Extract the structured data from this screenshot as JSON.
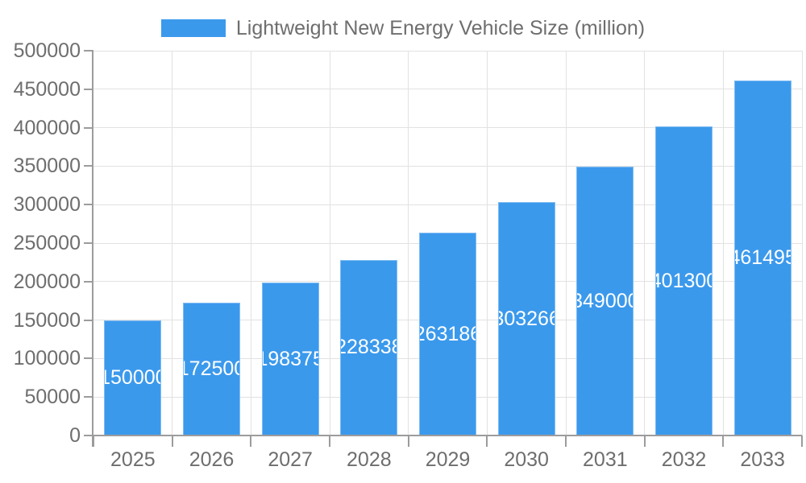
{
  "legend": {
    "label": "Lightweight New Energy Vehicle Size (million)"
  },
  "chart_data": {
    "type": "bar",
    "title": "Lightweight New Energy Vehicle Size (million)",
    "series_name": "Lightweight New Energy Vehicle Size (million)",
    "categories": [
      "2025",
      "2026",
      "2027",
      "2028",
      "2029",
      "2030",
      "2031",
      "2032",
      "2033"
    ],
    "values": [
      150000,
      172500,
      198375,
      228338,
      263186,
      303266,
      349000,
      401300,
      461495
    ],
    "bar_value_labels": [
      "150000",
      "172500",
      "198375",
      "228338",
      "263186",
      "303266",
      "349000",
      "401300",
      "461495"
    ],
    "xlabel": "",
    "ylabel": "",
    "ylim": [
      0,
      500000
    ],
    "yticks": [
      0,
      50000,
      100000,
      150000,
      200000,
      250000,
      300000,
      350000,
      400000,
      450000,
      500000
    ],
    "grid": true,
    "legend_position": "top-center",
    "colors": {
      "bar": "#3b99ec",
      "bar_label_text": "#ffffff",
      "grid": "#e2e2e2",
      "axis": "#9c9c9c",
      "tick_text": "#6e6e6e",
      "legend_text": "#6e6e6e",
      "background": "#ffffff"
    }
  }
}
